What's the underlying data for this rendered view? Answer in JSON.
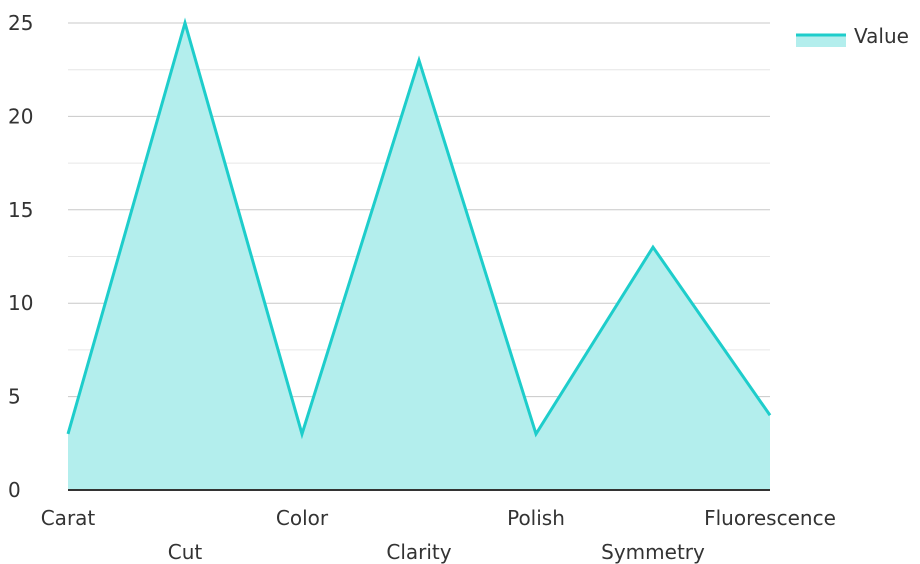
{
  "chart_data": {
    "type": "area",
    "categories": [
      "Carat",
      "Cut",
      "Color",
      "Clarity",
      "Polish",
      "Symmetry",
      "Fluorescence"
    ],
    "series": [
      {
        "name": "Value",
        "values": [
          3,
          25,
          3,
          23,
          3,
          13,
          4
        ]
      }
    ],
    "ylim": [
      0,
      25
    ],
    "yticks": [
      0,
      5,
      10,
      15,
      20,
      25
    ],
    "title": "",
    "xlabel": "",
    "ylabel": "",
    "grid": true,
    "legend": "top-right",
    "colors": {
      "line": "#1ecdcb",
      "fill": "#b3eeed",
      "grid_major": "#c8c8c8",
      "grid_minor": "#e6e6e6",
      "axis": "#333333"
    }
  }
}
